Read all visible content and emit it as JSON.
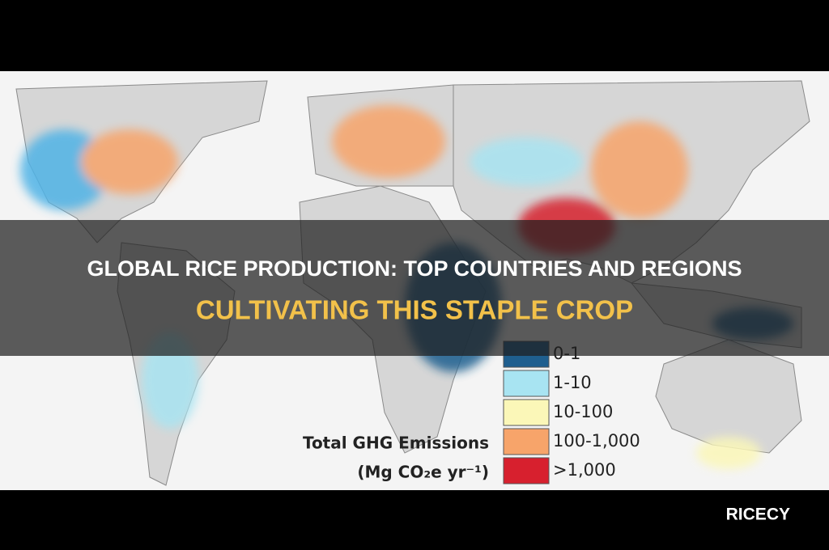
{
  "title_lines": [
    "GLOBAL RICE PRODUCTION: TOP COUNTRIES AND REGIONS",
    "CULTIVATING THIS STAPLE CROP"
  ],
  "map": {
    "legend": {
      "title": "Total GHG Emissions",
      "unit": "(Mg CO₂e yr⁻¹)",
      "items": [
        {
          "label": "0-1",
          "color": "#1f5f8f"
        },
        {
          "label": "1-10",
          "color": "#a8e4f2"
        },
        {
          "label": "10-100",
          "color": "#fbf7b8"
        },
        {
          "label": "100-1,000",
          "color": "#f7a46a"
        },
        {
          "label": ">1,000",
          "color": "#d7202e"
        }
      ]
    }
  },
  "brand": "RICECY"
}
